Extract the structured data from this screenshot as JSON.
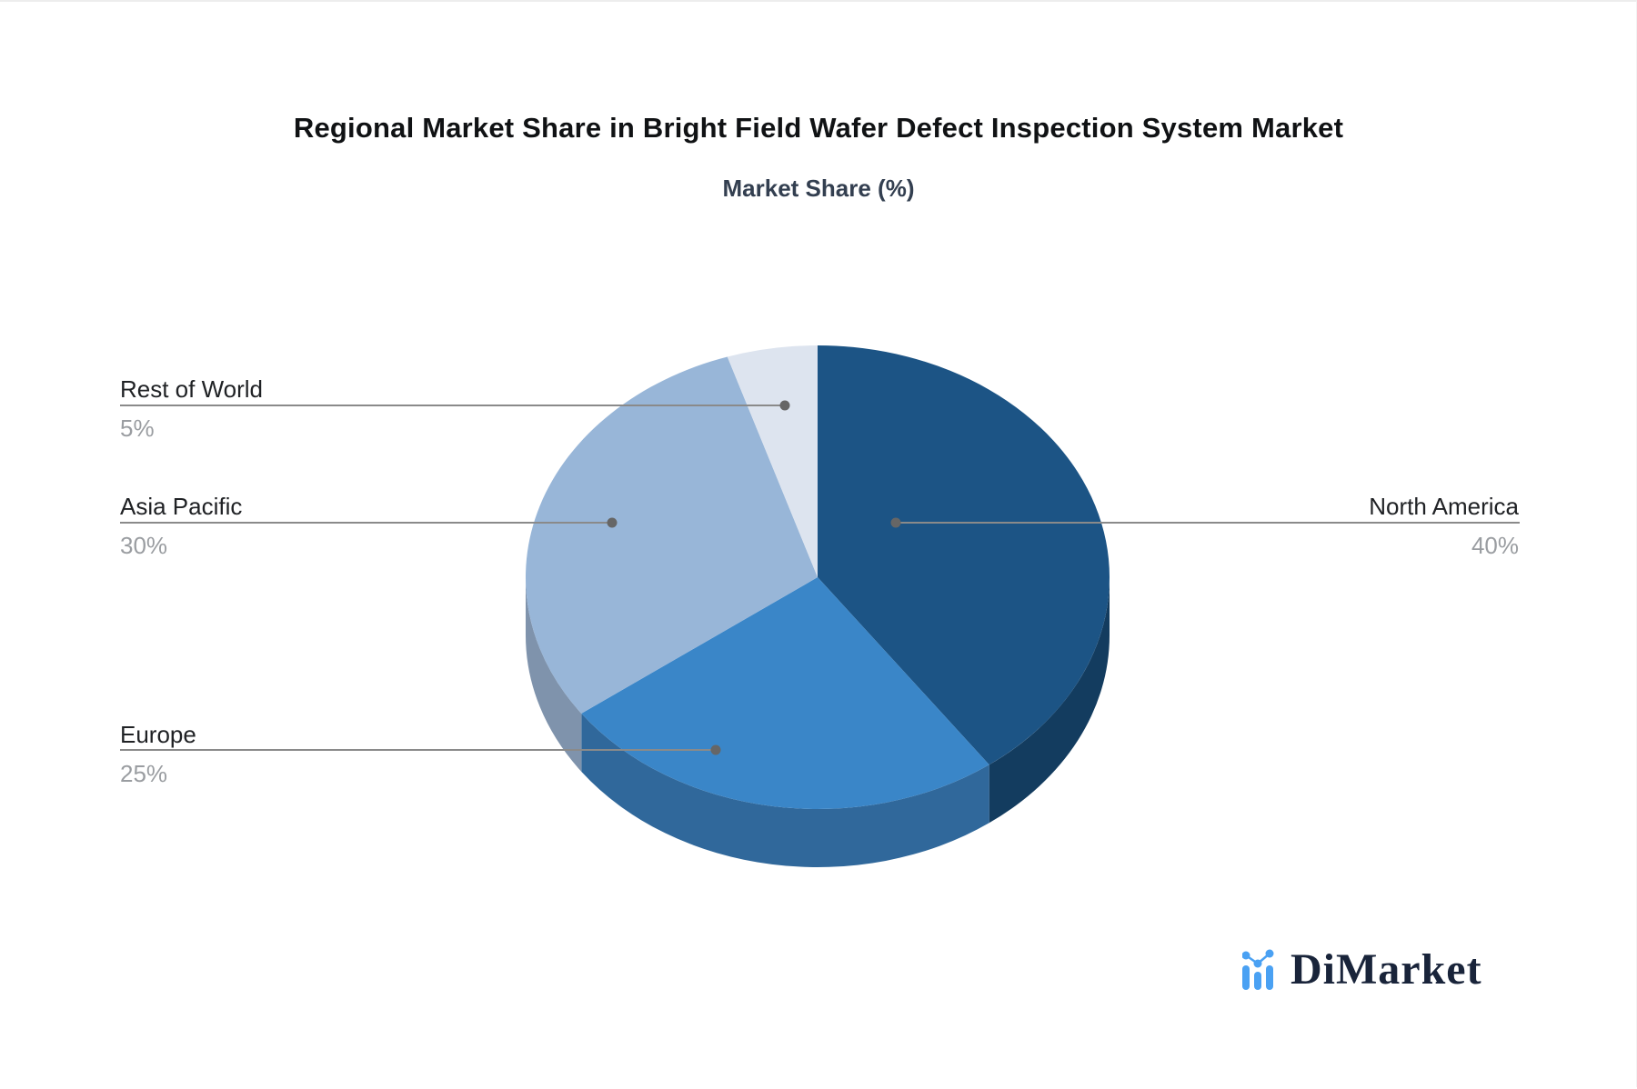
{
  "chart_data": {
    "type": "pie",
    "style": "3d",
    "title": "Regional Market Share in Bright Field Wafer Defect Inspection System Market",
    "subtitle": "Market Share (%)",
    "unit": "%",
    "start_angle_deg": 0,
    "direction": "clockwise",
    "legend": "none",
    "labels_layout": "callout-lines",
    "slices": [
      {
        "label": "North America",
        "value": 40,
        "display": "40%",
        "color": "#1c5485",
        "side_color": "#133c5f"
      },
      {
        "label": "Europe",
        "value": 25,
        "display": "25%",
        "color": "#3a86c8",
        "side_color": "#30689b"
      },
      {
        "label": "Asia Pacific",
        "value": 30,
        "display": "30%",
        "color": "#98b6d8",
        "side_color": "#7f93ac"
      },
      {
        "label": "Rest of World",
        "value": 5,
        "display": "5%",
        "color": "#dde4ef",
        "side_color": "#b9c4d4"
      }
    ]
  },
  "branding": {
    "name": "DiMarket"
  },
  "colors": {
    "leader_line": "#8a8a8a",
    "leader_dot": "#666666",
    "label_text": "#202225",
    "value_text": "#9a9da1",
    "title": "#101214",
    "subtitle": "#333f50",
    "logo_text": "#19243a",
    "logo_icon": "#4aa1f3"
  }
}
